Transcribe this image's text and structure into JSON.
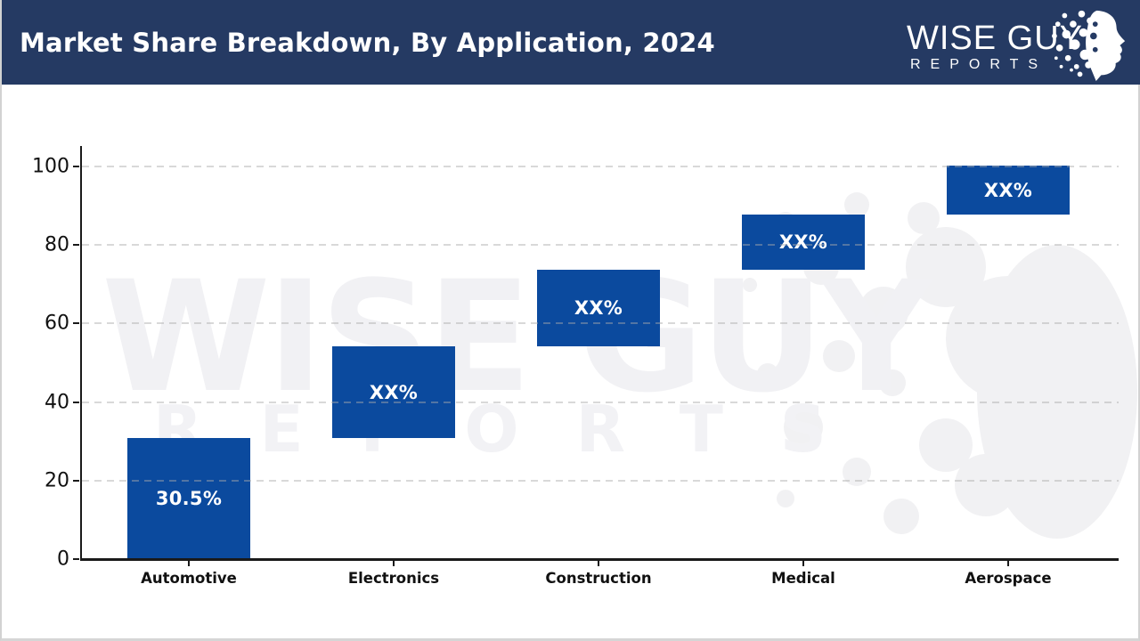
{
  "header": {
    "title": "Market Share Breakdown, By Application, 2024",
    "bg_color": "#253A63",
    "logo": {
      "line1": "WISE GUY",
      "line2": "REPORTS"
    }
  },
  "watermark": {
    "line1": "WISE GUY",
    "line2": "REPORTS"
  },
  "chart_data": {
    "type": "bar",
    "subtype": "waterfall",
    "title": "Market Share Breakdown, By Application, 2024",
    "categories": [
      "Automotive",
      "Electronics",
      "Construction",
      "Medical",
      "Aerospace"
    ],
    "segments": [
      {
        "category": "Automotive",
        "start": 0,
        "end": 30.5,
        "label": "30.5%"
      },
      {
        "category": "Electronics",
        "start": 30.5,
        "end": 54,
        "label": "XX%"
      },
      {
        "category": "Construction",
        "start": 54,
        "end": 73.5,
        "label": "XX%"
      },
      {
        "category": "Medical",
        "start": 73.5,
        "end": 87.5,
        "label": "XX%"
      },
      {
        "category": "Aerospace",
        "start": 87.5,
        "end": 100,
        "label": "XX%"
      }
    ],
    "xlabel": "",
    "ylabel": "",
    "ylim": [
      0,
      100
    ],
    "y_ticks": [
      0,
      20,
      40,
      60,
      80,
      100
    ],
    "grid": true,
    "legend": false,
    "bar_color": "#0B4A9E",
    "axis_color": "#1a1a1a",
    "grid_color": "#d9d9d9",
    "watermark_color": "#f1f1f4"
  }
}
